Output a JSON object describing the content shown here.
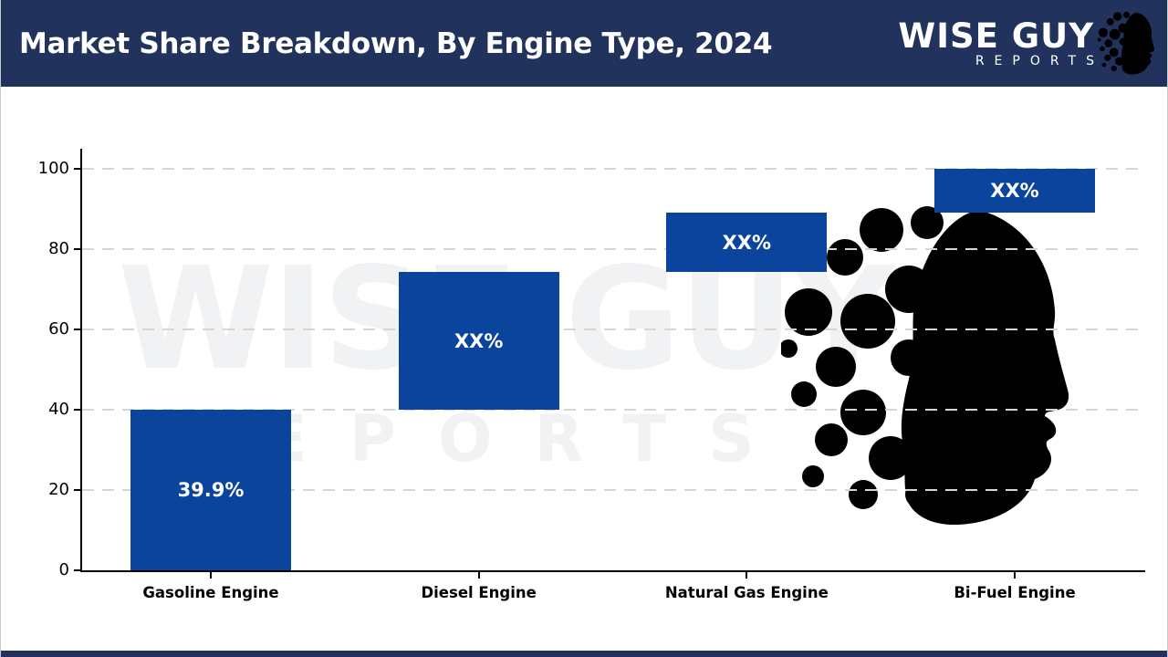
{
  "header": {
    "title": "Market Share Breakdown, By Engine Type, 2024",
    "logo": {
      "wordmark": "WISE GUY",
      "subtext": "REPORTS"
    }
  },
  "watermark": {
    "wordmark": "WISE GUY",
    "subtext": "REPORTS"
  },
  "chart_data": {
    "type": "bar",
    "subtype": "waterfall",
    "title": "Market Share Breakdown, By Engine Type, 2024",
    "categories": [
      "Gasoline Engine",
      "Diesel Engine",
      "Natural Gas Engine",
      "Bi-Fuel Engine"
    ],
    "segments": [
      {
        "category": "Gasoline Engine",
        "start": 0,
        "end": 39.9,
        "value": 39.9,
        "label": "39.9%"
      },
      {
        "category": "Diesel Engine",
        "start": 39.9,
        "end": 74.3,
        "value": 34.4,
        "label": "XX%"
      },
      {
        "category": "Natural Gas Engine",
        "start": 74.3,
        "end": 89.1,
        "value": 14.8,
        "label": "XX%"
      },
      {
        "category": "Bi-Fuel Engine",
        "start": 89.1,
        "end": 100,
        "value": 10.9,
        "label": "XX%"
      }
    ],
    "xlabel": "",
    "ylabel": "",
    "yticks": [
      0,
      20,
      40,
      60,
      80,
      100
    ],
    "ylim": [
      0,
      105
    ],
    "grid": "dashed-horizontal",
    "legend": "none",
    "bar_color": "#0b449c",
    "value_label_color": "#ffffff"
  },
  "colors": {
    "header_bg": "#21335c",
    "footer_bg": "#21335c",
    "axis": "#000000",
    "gridline": "#d6d6d6",
    "watermark": "#f1f2f4",
    "background": "#ffffff"
  }
}
